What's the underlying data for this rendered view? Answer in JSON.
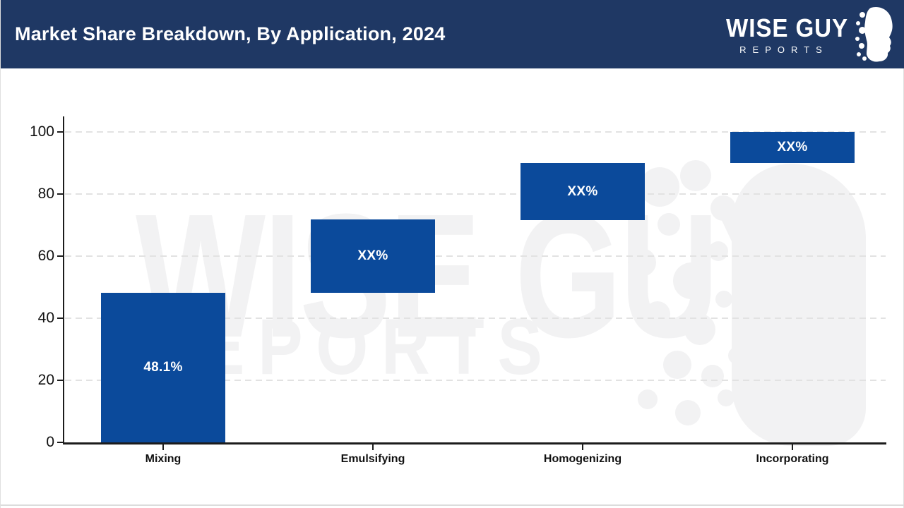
{
  "header": {
    "title": "Market Share Breakdown, By Application, 2024",
    "bg_color": "#1f3864",
    "logo": {
      "line1": "WISE GUY",
      "line2": "REPORTS"
    }
  },
  "watermark": {
    "line1": "WISE GUY",
    "line2": "REPORTS"
  },
  "chart_data": {
    "type": "bar",
    "subtype": "waterfall",
    "title": "Market Share Breakdown, By Application, 2024",
    "categories": [
      "Mixing",
      "Emulsifying",
      "Homogenizing",
      "Incorporating"
    ],
    "segments": [
      {
        "label": "Mixing",
        "start": 0,
        "end": 48.1,
        "value_label": "48.1%"
      },
      {
        "label": "Emulsifying",
        "start": 48.1,
        "end": 71.8,
        "value_label": "XX%"
      },
      {
        "label": "Homogenizing",
        "start": 71.8,
        "end": 90.1,
        "value_label": "XX%"
      },
      {
        "label": "Incorporating",
        "start": 90.1,
        "end": 100.0,
        "value_label": "XX%"
      }
    ],
    "xlabel": "",
    "ylabel": "",
    "ylim": [
      0,
      105
    ],
    "yticks": [
      0,
      20,
      40,
      60,
      80,
      100
    ],
    "grid": "horizontal-dashed",
    "legend": "none",
    "bar_color": "#0b4a9b",
    "value_label_color": "#ffffff",
    "axis_color": "#1c1c1c"
  }
}
